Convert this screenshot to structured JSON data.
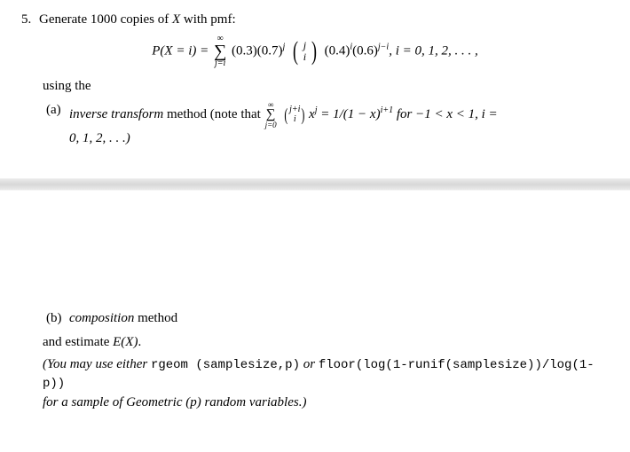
{
  "problem": {
    "number": "5.",
    "intro_a": "Generate 1000 copies of ",
    "intro_X": "X",
    "intro_b": " with pmf:"
  },
  "pmf": {
    "lhs": "P(X = i) = ",
    "sum_top": "∞",
    "sum_bot": "j=i",
    "term1": "(0.3)(0.7)",
    "exp1": "j",
    "binom_top": "j",
    "binom_bot": "i",
    "term2": "(0.4)",
    "exp2": "i",
    "term3": "(0.6)",
    "exp3": "j−i",
    "tail": ",  i = 0, 1, 2, . . . ,"
  },
  "using": "using the",
  "part_a": {
    "label": "(a)",
    "method": "inverse transform",
    "text1": " method (note that ",
    "sum_top": "∞",
    "sum_bot": "j=0",
    "binom_top": "j+i",
    "binom_bot": "i",
    "x": "x",
    "exp": "j",
    "eq": " = 1/(1 − x)",
    "exp2": "i+1",
    "text2": " for −1 < x < 1,  i = ",
    "cont": "0, 1, 2, . . .)"
  },
  "part_b": {
    "label": "(b)",
    "method": "composition",
    "text": " method"
  },
  "estimate": {
    "text_a": "and estimate ",
    "EX": "E(X)",
    "dot": "."
  },
  "hint": {
    "open": "(You may use either ",
    "code1": "rgeom (samplesize,p)",
    "mid": " or ",
    "code2": "floor(log(1-runif(samplesize))/log(1-p))",
    "end": "for a sample of Geometric (p) random variables.)"
  }
}
